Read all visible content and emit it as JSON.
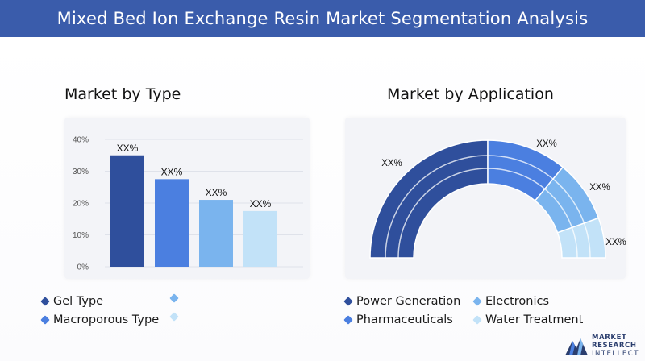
{
  "header": {
    "title": "Mixed Bed Ion Exchange Resin Market Segmentation Analysis"
  },
  "colors": {
    "header": "#3a5cab",
    "dark": "#2f4f9c",
    "mid": "#4b7fe0",
    "light": "#7ab4ee",
    "pale": "#c2e2f8"
  },
  "chart_data": [
    {
      "type": "bar",
      "title": "Market by Type",
      "categories": [
        "Gel Type",
        "Macroporous Type",
        "",
        ""
      ],
      "values": [
        35,
        27.5,
        21,
        17.5
      ],
      "data_labels": [
        "XX%",
        "XX%",
        "XX%",
        "XX%"
      ],
      "colors": [
        "#2f4f9c",
        "#4b7fe0",
        "#7ab4ee",
        "#c2e2f8"
      ],
      "yticks": [
        "0%",
        "10%",
        "20%",
        "30%",
        "40%"
      ],
      "ylim": [
        0,
        40
      ],
      "grid": true
    },
    {
      "type": "pie",
      "title": "Market by Application",
      "categories": [
        "Power Generation",
        "Pharmaceuticals",
        "Electronics",
        "Water Treatment"
      ],
      "values": [
        50,
        22,
        17,
        11
      ],
      "data_labels": [
        "XX%",
        "XX%",
        "XX%",
        "XX%"
      ],
      "colors": [
        "#2f4f9c",
        "#4b7fe0",
        "#7ab4ee",
        "#c2e2f8"
      ],
      "style": "semi-donut"
    }
  ],
  "legend_type": [
    {
      "label": "Gel Type",
      "color": "#2f4f9c"
    },
    {
      "label": "",
      "color": "#7ab4ee"
    },
    {
      "label": "Macroporous Type",
      "color": "#4b7fe0"
    },
    {
      "label": "",
      "color": "#c2e2f8"
    }
  ],
  "legend_application": [
    {
      "label": "Power Generation",
      "color": "#2f4f9c"
    },
    {
      "label": "Electronics",
      "color": "#7ab4ee"
    },
    {
      "label": "Pharmaceuticals",
      "color": "#4b7fe0"
    },
    {
      "label": "Water Treatment",
      "color": "#c2e2f8"
    }
  ],
  "logo": {
    "line1": "MARKET",
    "line2": "RESEARCH",
    "line3": "INTELLECT"
  }
}
